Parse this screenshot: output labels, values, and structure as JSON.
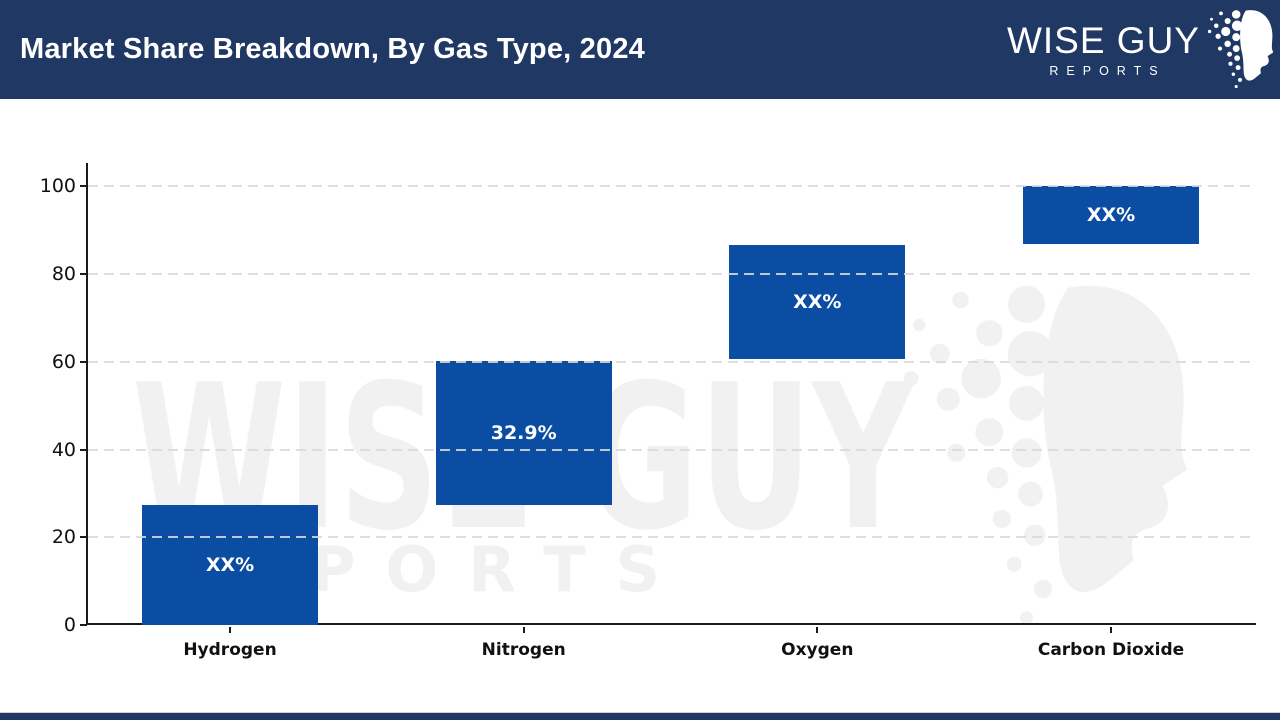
{
  "header": {
    "title": "Market Share Breakdown, By Gas Type, 2024",
    "logo": {
      "wordmark": "WISE GUY",
      "subtext": "REPORTS"
    }
  },
  "watermark": {
    "wordmark": "WISE GUY",
    "subtext": "REPORTS"
  },
  "chart_data": {
    "type": "bar",
    "subtype": "waterfall",
    "title": "Market Share Breakdown, By Gas Type, 2024",
    "xlabel": "",
    "ylabel": "",
    "categories": [
      "Hydrogen",
      "Nitrogen",
      "Oxygen",
      "Carbon Dioxide"
    ],
    "segments": [
      {
        "category": "Hydrogen",
        "start": 0,
        "end": 27.3,
        "label": "XX%"
      },
      {
        "category": "Nitrogen",
        "start": 27.3,
        "end": 60.2,
        "label": "32.9%"
      },
      {
        "category": "Oxygen",
        "start": 60.7,
        "end": 86.7,
        "label": "XX%"
      },
      {
        "category": "Carbon Dioxide",
        "start": 86.9,
        "end": 100.2,
        "label": "XX%"
      }
    ],
    "yticks": [
      0,
      20,
      40,
      60,
      80,
      100
    ],
    "ylim": [
      0,
      105.4
    ],
    "grid": "horizontal-dashed",
    "legend": null,
    "bar_color": "#0b4da2",
    "bar_label_color": "#ffffff"
  },
  "colors": {
    "header_bg": "#203864",
    "footer_bg": "#203864",
    "bar": "#0b4da2",
    "grid": "#d9d9d9",
    "axis": "#1a1a1a",
    "watermark": "#f1f1f1",
    "title_text": "#ffffff"
  }
}
